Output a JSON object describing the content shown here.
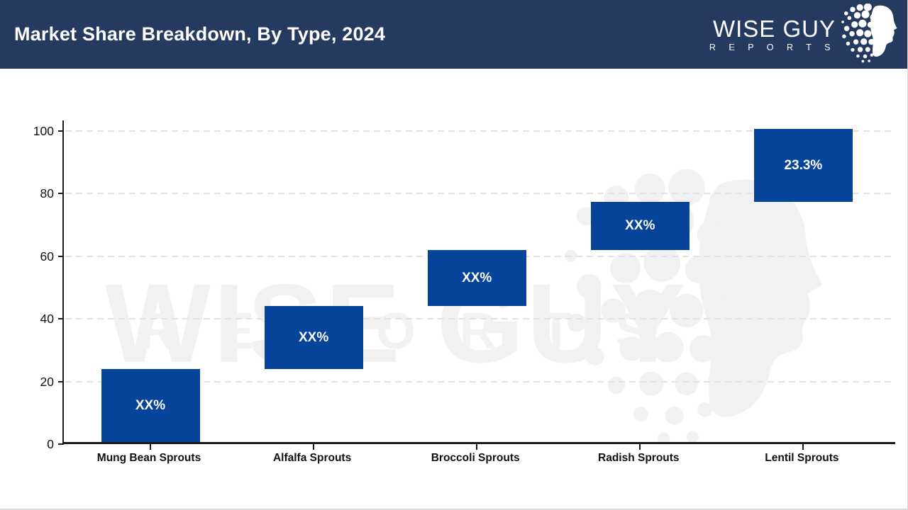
{
  "header": {
    "title": "Market Share Breakdown, By Type, 2024"
  },
  "logo": {
    "name": "WISE GUY",
    "tagline": "REPORTS"
  },
  "watermark": {
    "name": "WISE GUY",
    "tagline": "REPORTS"
  },
  "colors": {
    "header_bg": "#243a5f",
    "bar": "#06439a",
    "bar_label": "#ffffff",
    "gridline": "#e2e2e2",
    "axis": "#1a1a1a",
    "watermark": "#f1f1f3"
  },
  "chart_data": {
    "type": "bar",
    "subtype": "waterfall",
    "title": "Market Share Breakdown, By Type, 2024",
    "xlabel": "",
    "ylabel": "",
    "ylim": [
      0,
      100
    ],
    "yticks": [
      0,
      20,
      40,
      60,
      80,
      100
    ],
    "grid": true,
    "legend": false,
    "categories": [
      "Mung Bean Sprouts",
      "Alfalfa Sprouts",
      "Broccoli Sprouts",
      "Radish Sprouts",
      "Lentil Sprouts"
    ],
    "bars": [
      {
        "category": "Mung Bean Sprouts",
        "start": 0,
        "end": 23.3,
        "label": "XX%"
      },
      {
        "category": "Alfalfa Sprouts",
        "start": 23.3,
        "end": 43.4,
        "label": "XX%"
      },
      {
        "category": "Broccoli Sprouts",
        "start": 43.4,
        "end": 61.3,
        "label": "XX%"
      },
      {
        "category": "Radish Sprouts",
        "start": 61.3,
        "end": 76.6,
        "label": "XX%"
      },
      {
        "category": "Lentil Sprouts",
        "start": 76.7,
        "end": 100,
        "label": "23.3%"
      }
    ]
  }
}
